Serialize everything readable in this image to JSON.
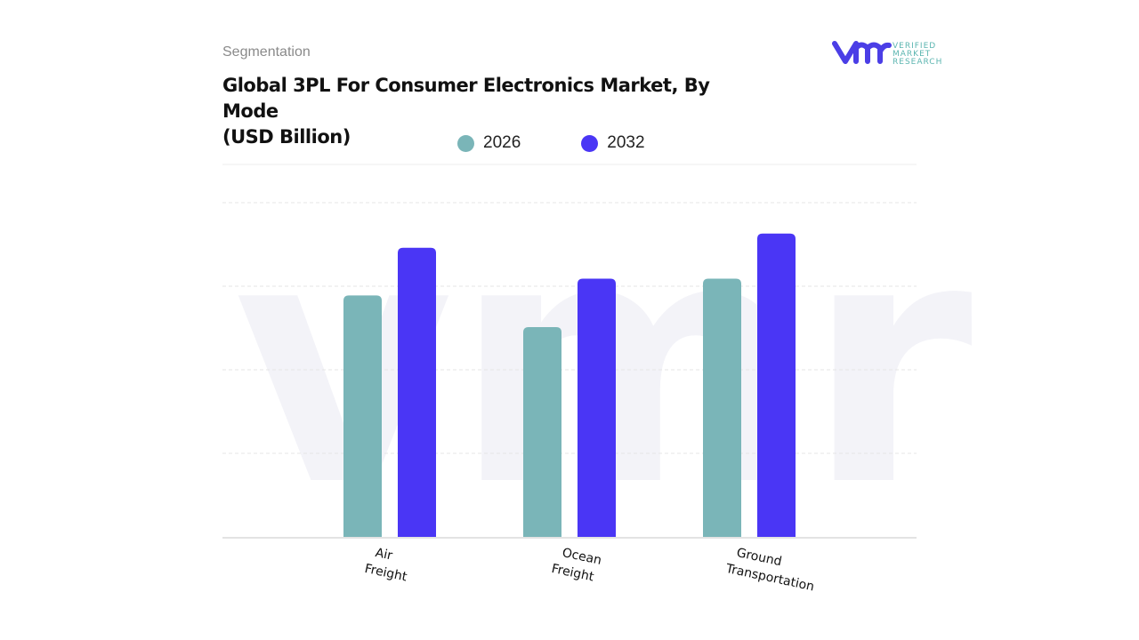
{
  "header": {
    "section": "Segmentation",
    "title_line1": "Global 3PL For Consumer Electronics Market, By Mode",
    "title_line2": "(USD Billion)"
  },
  "logo": {
    "text1": "VERIFIED",
    "text2": "MARKET",
    "text3": "RESEARCH"
  },
  "chart_data": {
    "type": "bar",
    "title": "Global 3PL For Consumer Electronics Market, By Mode (USD Billion)",
    "categories": [
      "Air Freight",
      "Ocean Freight",
      "Ground Transportation"
    ],
    "category_lines": [
      [
        "Air",
        "Freight"
      ],
      [
        "Ocean",
        "Freight"
      ],
      [
        "Ground",
        "Transportation"
      ]
    ],
    "series": [
      {
        "name": "2026",
        "color": "#7ab5b8",
        "values": [
          2.89,
          2.51,
          3.09
        ]
      },
      {
        "name": "2032",
        "color": "#4a36f5",
        "values": [
          3.46,
          3.09,
          3.63
        ]
      }
    ],
    "ylim": [
      0,
      4
    ],
    "grid": true,
    "legend": "top",
    "xlabel": "",
    "ylabel": ""
  }
}
